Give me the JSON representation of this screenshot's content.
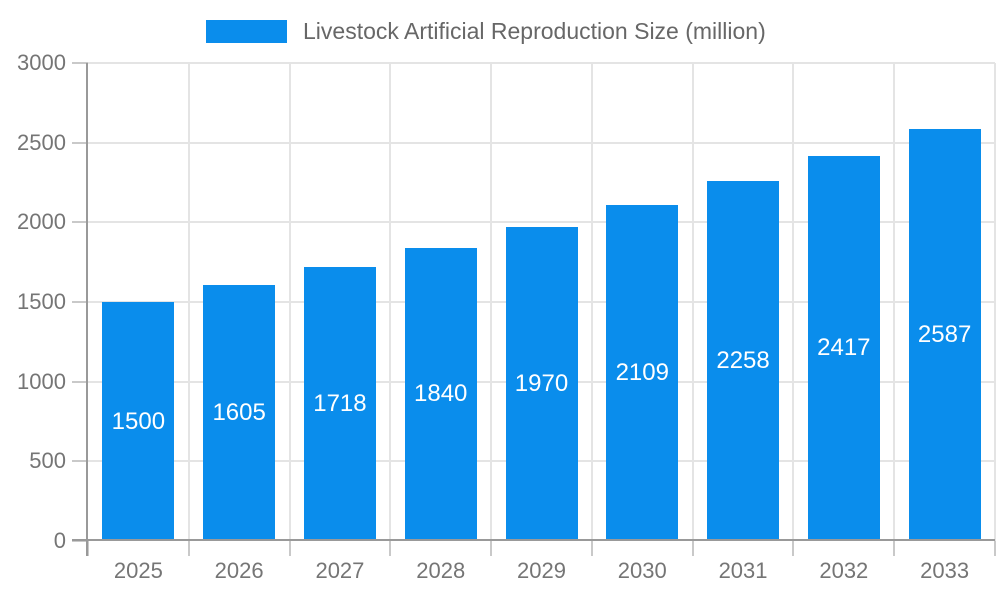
{
  "legend": {
    "label": "Livestock Artificial Reproduction Size (million)"
  },
  "chart_data": {
    "type": "bar",
    "title": "Livestock Artificial Reproduction Size (million)",
    "series_name": "Livestock Artificial Reproduction Size (million)",
    "categories": [
      "2025",
      "2026",
      "2027",
      "2028",
      "2029",
      "2030",
      "2031",
      "2032",
      "2033"
    ],
    "values": [
      1500,
      1605,
      1718,
      1840,
      1970,
      2109,
      2258,
      2417,
      2587
    ],
    "bar_labels": [
      "1500",
      "1605",
      "1718",
      "1840",
      "1970",
      "2109",
      "2258",
      "2417",
      "2587"
    ],
    "xlabel": "",
    "ylabel": "",
    "ylim": [
      0,
      3000
    ],
    "yticks": [
      0,
      500,
      1000,
      1500,
      2000,
      2500,
      3000
    ],
    "grid": true,
    "legend_position": "top",
    "bar_label_position": "inside-center",
    "colors": {
      "bar": "#0a8dec",
      "bar_label": "#ffffff",
      "axis_label": "#757575",
      "legend_text": "#676767",
      "axis_line": "#999999",
      "tick_line": "#c9c9c9",
      "grid_line": "#e4e4e4",
      "background": "#ffffff"
    }
  }
}
